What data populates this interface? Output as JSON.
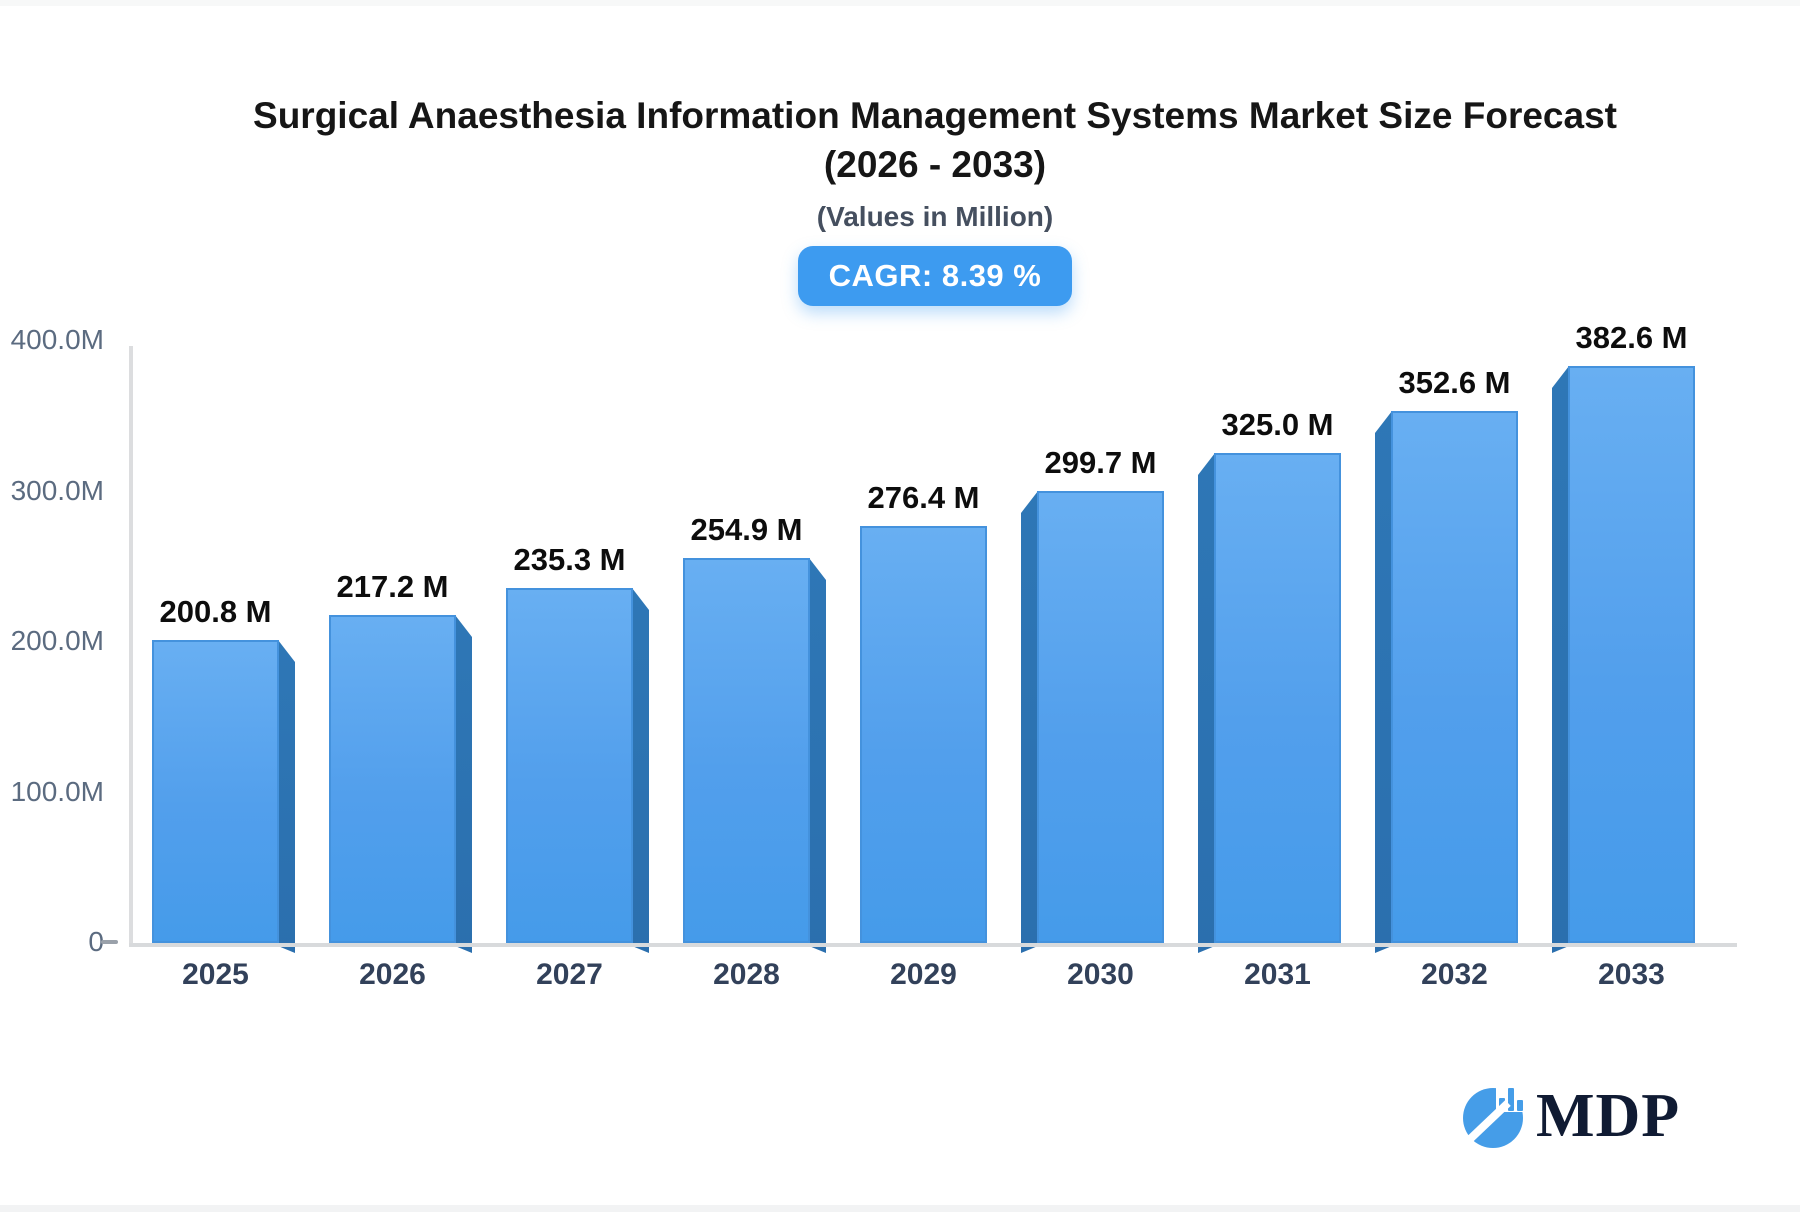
{
  "title": {
    "line1": "Surgical Anaesthesia Information Management Systems Market Size Forecast",
    "line2": "(2026 - 2033)",
    "subtitle": "(Values in Million)"
  },
  "badge": {
    "label": "CAGR: 8.39 %"
  },
  "chart_data": {
    "type": "bar",
    "title": "Surgical Anaesthesia Information Management Systems Market Size Forecast (2026 - 2033)",
    "subtitle": "(Values in Million)",
    "cagr": "8.39 %",
    "categories": [
      "2025",
      "2026",
      "2027",
      "2028",
      "2029",
      "2030",
      "2031",
      "2032",
      "2033"
    ],
    "values": [
      200.8,
      217.2,
      235.3,
      254.9,
      276.4,
      299.7,
      325.0,
      352.6,
      382.6
    ],
    "bar_labels": [
      "200.8 M",
      "217.2 M",
      "235.3 M",
      "254.9 M",
      "276.4 M",
      "299.7 M",
      "325.0 M",
      "352.6 M",
      "382.6 M"
    ],
    "ylim": [
      0,
      400
    ],
    "yticks": [
      {
        "value": 400,
        "label": "400.0M"
      },
      {
        "value": 300,
        "label": "300.0M"
      },
      {
        "value": 200,
        "label": "200.0M"
      },
      {
        "value": 100,
        "label": "100.0M"
      },
      {
        "value": 0,
        "label": "0"
      }
    ],
    "grid": "off",
    "legend": "none",
    "style": "3d-perspective-columns",
    "colors": {
      "bar_front_top": "#68aff2",
      "bar_front_bottom": "#459bea",
      "bar_border": "#4492dd",
      "bar_side": "#2e77b6",
      "axis_line": "#d8dadc",
      "y_label": "#5b6b80",
      "x_label": "#32415a",
      "value_label": "#0d0d0d",
      "badge_bg": "#3d9bf0"
    }
  },
  "logo": {
    "text": "MDP",
    "mark_color": "#459de8",
    "text_color": "#101b33"
  }
}
